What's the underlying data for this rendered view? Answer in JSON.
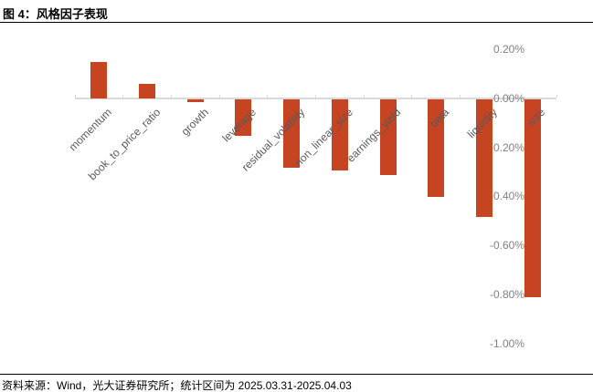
{
  "header": {
    "title": "图 4：风格因子表现"
  },
  "footer": {
    "source": "资料来源：Wind，光大证券研究所；统计区间为 2025.03.31-2025.04.03"
  },
  "chart_data": {
    "type": "bar",
    "title": "图 4：风格因子表现",
    "categories": [
      "momentum",
      "book_to_price_ratio",
      "growth",
      "leverage",
      "residual_volatility",
      "non_linear_size",
      "earnings_yield",
      "beta",
      "liquidity",
      "size"
    ],
    "values": [
      0.15,
      0.06,
      -0.01,
      -0.15,
      -0.28,
      -0.29,
      -0.31,
      -0.4,
      -0.48,
      -0.81
    ],
    "unit": "%",
    "xlabel": "",
    "ylabel": "",
    "ylim": [
      -1.0,
      0.2
    ],
    "ytick_step": 0.2,
    "ytick_labels": [
      "0.20%",
      "0.00%",
      "-0.20%",
      "-0.40%",
      "-0.60%",
      "-0.80%",
      "-1.00%"
    ],
    "grid": false,
    "legend_position": "none",
    "category_label_rotation": -45,
    "colors": {
      "bar": "#C64422",
      "axis_line": "#D9D9D9",
      "ytick_label": "#808080",
      "category_label": "#595959"
    }
  }
}
